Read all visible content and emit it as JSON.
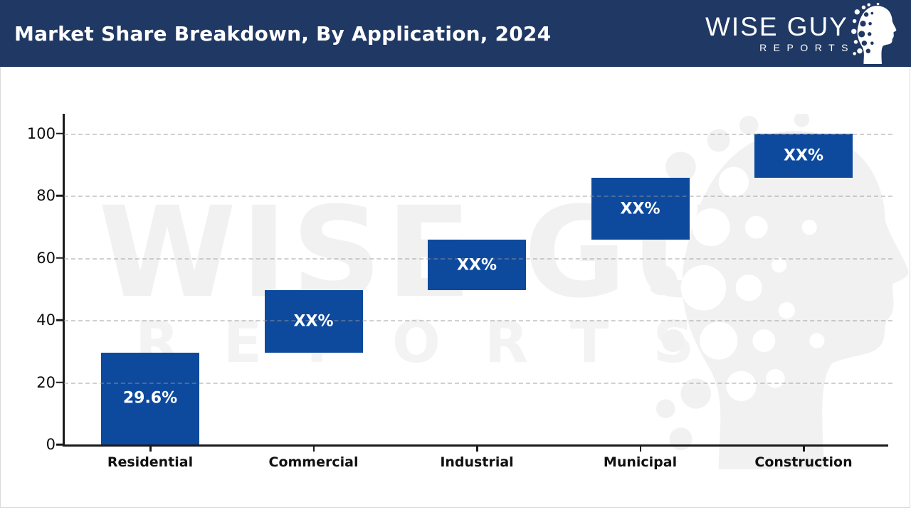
{
  "header": {
    "title": "Market Share Breakdown, By Application, 2024",
    "bg_color": "#1F3864",
    "logo": {
      "line1": "WISE GUY",
      "line2": "REPORTS"
    }
  },
  "watermark": {
    "line1": "WISE GUY",
    "line2": "REPORTS"
  },
  "chart_data": {
    "type": "bar",
    "subtype": "waterfall",
    "title": "Market Share Breakdown, By Application, 2024",
    "categories": [
      "Residential",
      "Commercial",
      "Industrial",
      "Municipal",
      "Construction"
    ],
    "segments": [
      {
        "category": "Residential",
        "start": 0,
        "end": 29.6,
        "label": "29.6%"
      },
      {
        "category": "Commercial",
        "start": 29.6,
        "end": 49.5,
        "label": "XX%"
      },
      {
        "category": "Industrial",
        "start": 49.5,
        "end": 65.8,
        "label": "XX%"
      },
      {
        "category": "Municipal",
        "start": 65.8,
        "end": 85.7,
        "label": "XX%"
      },
      {
        "category": "Construction",
        "start": 85.7,
        "end": 100,
        "label": "XX%"
      }
    ],
    "y_ticks": [
      0,
      20,
      40,
      60,
      80,
      100
    ],
    "ylim": [
      0,
      106
    ],
    "xlabel": "",
    "ylabel": "",
    "grid": "horizontal-dashed",
    "legend": "none",
    "bar_color": "#0D4A9E",
    "axis_color": "#1a1a1a",
    "grid_color": "#d8d8d8",
    "bar_label_color": "#ffffff"
  }
}
